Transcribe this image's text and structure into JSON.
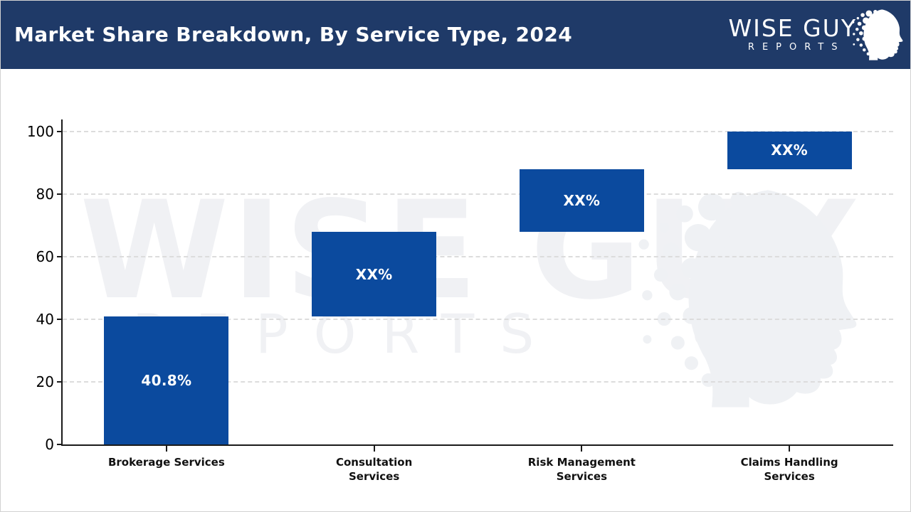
{
  "header": {
    "title": "Market Share Breakdown, By Service Type, 2024",
    "logo": {
      "line1": "WISE GUY",
      "line2": "REPORTS"
    }
  },
  "watermark": {
    "line1": "WISE GUY",
    "line2": "REPORTS"
  },
  "colors": {
    "header_background": "#1f3a68",
    "bar_fill": "#0b4a9e",
    "bar_label": "#ffffff",
    "gridline": "#dcdcdc",
    "axis": "#1a1a1a",
    "watermark": "#f0f1f4"
  },
  "chart_data": {
    "type": "bar",
    "subtype": "waterfall",
    "title": "Market Share Breakdown, By Service Type, 2024",
    "categories": [
      "Brokerage Services",
      "Consultation Services",
      "Risk Management Services",
      "Claims Handling Services"
    ],
    "category_lines": [
      [
        "Brokerage Services"
      ],
      [
        "Consultation",
        "Services"
      ],
      [
        "Risk Management",
        "Services"
      ],
      [
        "Claims Handling",
        "Services"
      ]
    ],
    "segments": [
      {
        "label": "Brokerage Services",
        "start": 0,
        "end": 40.8,
        "value_label": "40.8%"
      },
      {
        "label": "Consultation Services",
        "start": 40.8,
        "end": 68,
        "value_label": "XX%"
      },
      {
        "label": "Risk Management Services",
        "start": 68,
        "end": 88,
        "value_label": "XX%"
      },
      {
        "label": "Claims Handling Services",
        "start": 88,
        "end": 100,
        "value_label": "XX%"
      }
    ],
    "ylim": [
      0,
      100
    ],
    "yticks": [
      0,
      20,
      40,
      60,
      80,
      100
    ],
    "xlabel": "",
    "ylabel": "",
    "grid": "horizontal-dashed",
    "legend": "none"
  }
}
